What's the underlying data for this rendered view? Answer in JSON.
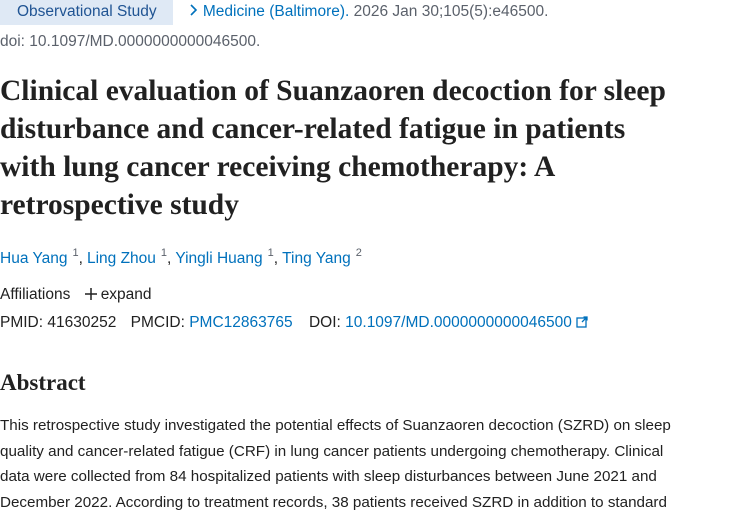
{
  "header": {
    "publication_type": "Observational Study",
    "journal": "Medicine (Baltimore).",
    "citation": "2026 Jan 30;105(5):e46500.",
    "doi_line": "doi: 10.1097/MD.0000000000046500."
  },
  "title_lines": [
    "Clinical evaluation of Suanzaoren decoction for sleep",
    "disturbance and cancer-related fatigue in patients",
    "with lung cancer receiving chemotherapy: A",
    "retrospective study"
  ],
  "authors": [
    {
      "name": "Hua Yang",
      "affiliation": "1"
    },
    {
      "name": "Ling Zhou",
      "affiliation": "1"
    },
    {
      "name": "Yingli Huang",
      "affiliation": "1"
    },
    {
      "name": "Ting Yang",
      "affiliation": "2"
    }
  ],
  "author_separator": ",",
  "affiliations": {
    "label": "Affiliations",
    "expand": "expand"
  },
  "identifiers": {
    "pmid_label": "PMID:",
    "pmid": "41630252",
    "pmcid_label": "PMCID:",
    "pmcid": "PMC12863765",
    "doi_label": "DOI:",
    "doi": "10.1097/MD.0000000000046500"
  },
  "abstract": {
    "heading": "Abstract",
    "lines": [
      "This retrospective study investigated the potential effects of Suanzaoren decoction (SZRD) on sleep",
      "quality and cancer-related fatigue (CRF) in lung cancer patients undergoing chemotherapy. Clinical",
      "data were collected from 84 hospitalized patients with sleep disturbances between June 2021 and",
      "December 2022. According to treatment records, 38 patients received SZRD in addition to standard"
    ]
  }
}
